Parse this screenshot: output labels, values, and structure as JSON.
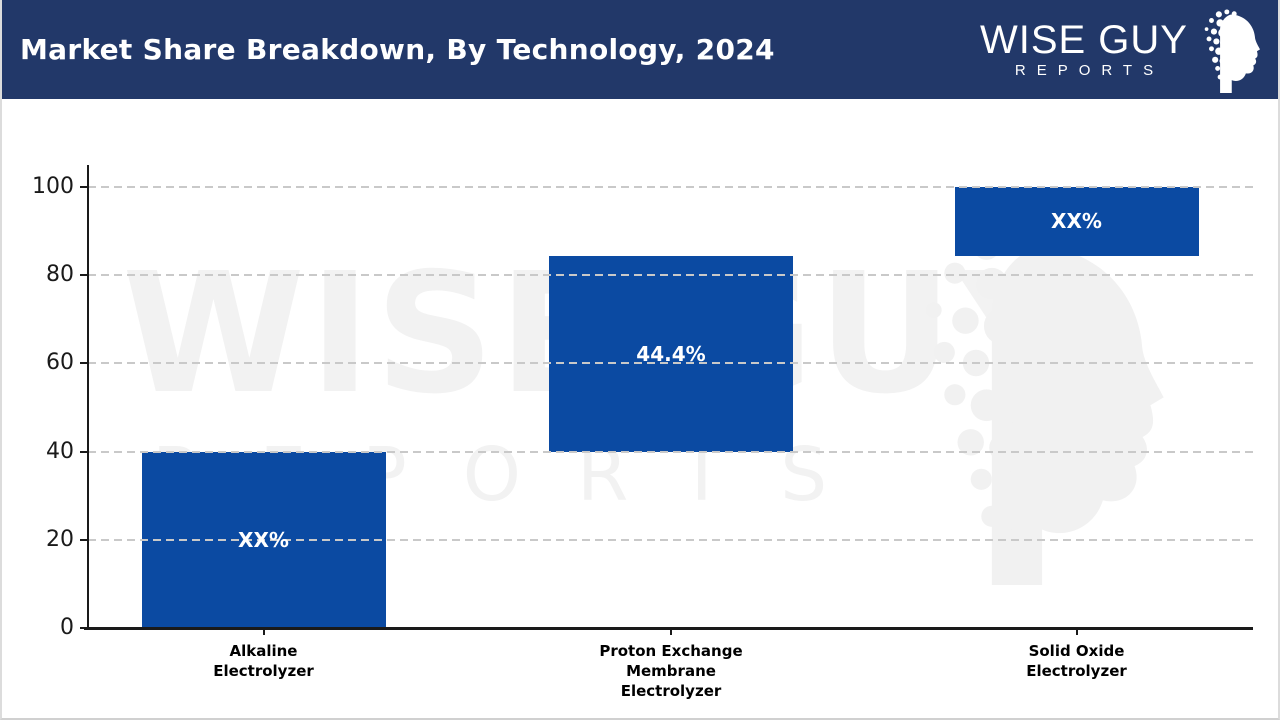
{
  "header": {
    "title": "Market Share Breakdown, By Technology, 2024",
    "bg_color": "#223869",
    "logo": {
      "line1": "WISE GUY",
      "line2": "REPORTS"
    }
  },
  "watermark": {
    "line1": "WISE GUY",
    "line2": "REPORTS"
  },
  "colors": {
    "header_navy": "#223869",
    "bar_blue": "#0b4aa2",
    "gridline_gray": "#c9c9c9",
    "watermark_gray": "#f2f2f2",
    "axis_black": "#1a1a1a"
  },
  "chart_data": {
    "type": "bar",
    "variant": "floating-waterfall",
    "title": "Market Share Breakdown, By Technology, 2024",
    "categories": [
      "Alkaline\nElectrolyzer",
      "Proton Exchange\nMembrane\nElectrolyzer",
      "Solid Oxide\nElectrolyzer"
    ],
    "bars": [
      {
        "category": "Alkaline Electrolyzer",
        "start": 0,
        "end": 40,
        "value_label": "XX%"
      },
      {
        "category": "Proton Exchange Membrane Electrolyzer",
        "start": 40,
        "end": 84.4,
        "value": 44.4,
        "value_label": "44.4%"
      },
      {
        "category": "Solid Oxide Electrolyzer",
        "start": 84.4,
        "end": 100,
        "value_label": "XX%"
      }
    ],
    "yticks": [
      0,
      20,
      40,
      60,
      80,
      100
    ],
    "ylim": [
      0,
      105
    ],
    "ylabel": "",
    "xlabel": "",
    "bar_color": "#0b4aa2",
    "grid": {
      "axis": "y",
      "style": "dashed",
      "color": "#c9c9c9",
      "above_bars": true
    },
    "legend": "none"
  }
}
